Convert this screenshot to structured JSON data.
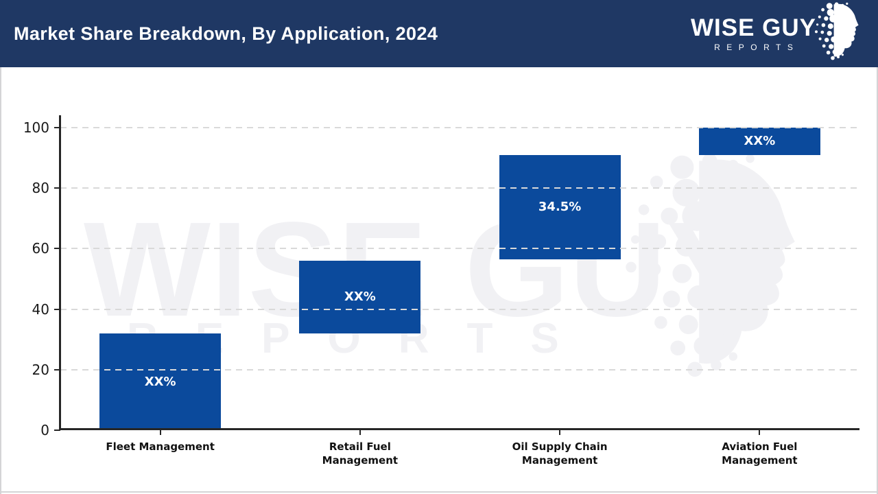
{
  "header": {
    "title": "Market Share Breakdown, By Application, 2024",
    "brand": {
      "name": "WISE GUY",
      "sub": "REPORTS"
    }
  },
  "chart_data": {
    "type": "bar",
    "subtype": "waterfall",
    "title": "Market Share Breakdown, By Application, 2024",
    "categories": [
      "Fleet Management",
      "Retail Fuel\nManagement",
      "Oil Supply Chain\nManagement",
      "Aviation Fuel\nManagement"
    ],
    "segments": [
      {
        "category": "Fleet Management",
        "start": 0,
        "end": 32,
        "label": "XX%"
      },
      {
        "category": "Retail Fuel Management",
        "start": 32,
        "end": 56,
        "label": "XX%"
      },
      {
        "category": "Oil Supply Chain Management",
        "start": 56.5,
        "end": 91,
        "label": "34.5%"
      },
      {
        "category": "Aviation Fuel Management",
        "start": 91,
        "end": 100,
        "label": "XX%"
      }
    ],
    "xlabel": "",
    "ylabel": "",
    "ylim": [
      0,
      100
    ],
    "yticks": [
      0,
      20,
      40,
      60,
      80,
      100
    ],
    "grid": "horizontal-dashed-over-bars",
    "legend": "none",
    "watermark": {
      "line1": "WISE GUY",
      "line2": "REPORTS"
    }
  },
  "colors": {
    "header_bg": "#1f3864",
    "title_text": "#ffffff",
    "bar": "#0b4a9c",
    "bar_label": "#ffffff",
    "grid": "#d9d9d9",
    "axis": "#262626",
    "tick_label": "#1a1a1a",
    "watermark": "#f1f1f4",
    "page_border": "#d4d4d6"
  }
}
